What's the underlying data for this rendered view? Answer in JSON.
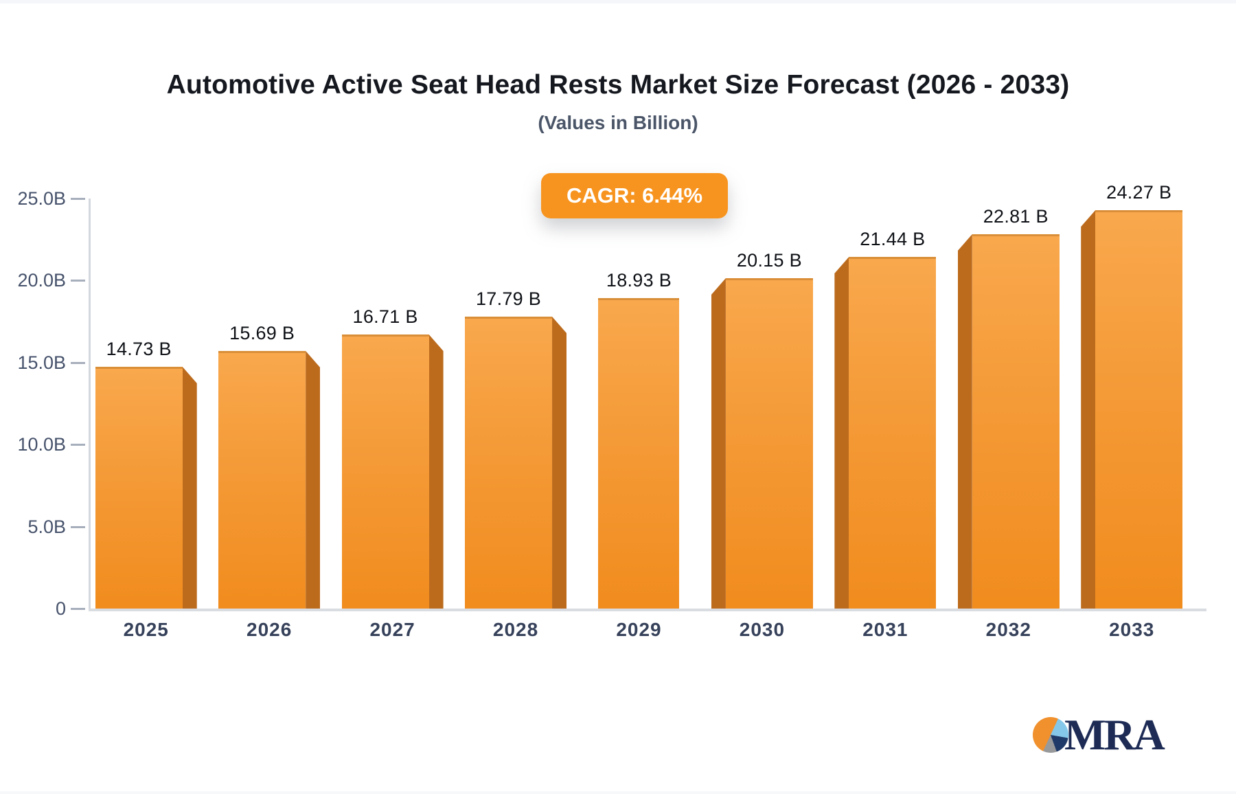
{
  "header": {
    "title": "Automotive Active Seat Head Rests Market Size Forecast (2026 - 2033)",
    "subtitle": "(Values in Billion)"
  },
  "badge": {
    "label": "CAGR: 6.44%"
  },
  "chart_data": {
    "type": "bar",
    "title": "Automotive Active Seat Head Rests Market Size Forecast (2026 - 2033)",
    "subtitle": "(Values in Billion)",
    "cagr_pct": 6.44,
    "categories": [
      "2025",
      "2026",
      "2027",
      "2028",
      "2029",
      "2030",
      "2031",
      "2032",
      "2033"
    ],
    "values": [
      14.73,
      15.69,
      16.71,
      17.79,
      18.93,
      20.15,
      21.44,
      22.81,
      24.27
    ],
    "value_labels": [
      "14.73 B",
      "15.69 B",
      "16.71 B",
      "17.79 B",
      "18.93 B",
      "20.15 B",
      "21.44 B",
      "22.81 B",
      "24.27 B"
    ],
    "unit": "B",
    "ylim": [
      0,
      25
    ],
    "y_ticks": [
      {
        "value": 25,
        "label": "25.0B"
      },
      {
        "value": 20,
        "label": "20.0B"
      },
      {
        "value": 15,
        "label": "15.0B"
      },
      {
        "value": 10,
        "label": "10.0B"
      },
      {
        "value": 5,
        "label": "5.0B"
      },
      {
        "value": 0,
        "label": "0"
      }
    ],
    "grid": false,
    "legend": false,
    "bar_style": "3d-extruded",
    "colors": {
      "bar_front_top": "#F9A84D",
      "bar_front_bottom": "#F18C1E",
      "bar_side": "#BC6B1D",
      "bar_top_edge": "#D98E37",
      "badge_bg": "#F7941F",
      "value_label": "#0E1116",
      "axis_label": "#46526B",
      "year_label": "#36415A"
    }
  },
  "logo": {
    "text": "MRA",
    "text_color": "#1D2B55",
    "pie_colors": {
      "orange": "#F0912D",
      "light_blue": "#85C7E9",
      "navy": "#1F3A68",
      "gray": "#98999B"
    }
  }
}
